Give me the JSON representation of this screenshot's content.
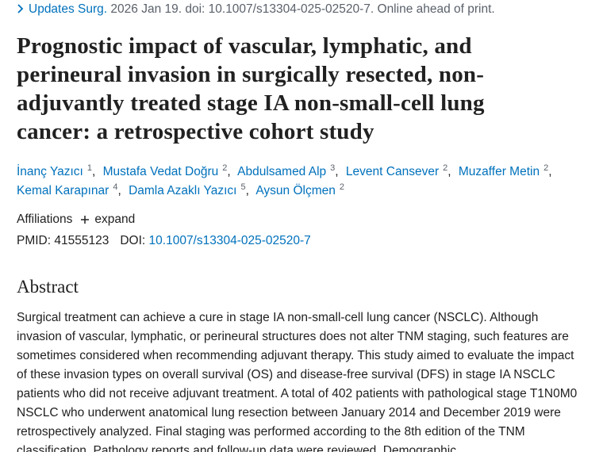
{
  "citation": {
    "journal": "Updates Surg.",
    "details": "2026 Jan 19. doi: 10.1007/s13304-025-02520-7. Online ahead of print."
  },
  "title": "Prognostic impact of vascular, lymphatic, and perineural invasion in surgically resected, non-adjuvantly treated stage IA non-small-cell lung cancer: a retrospective cohort study",
  "authors": [
    {
      "name": "İnanç Yazıcı",
      "aff": "1"
    },
    {
      "name": "Mustafa Vedat Doğru",
      "aff": "2"
    },
    {
      "name": "Abdulsamed Alp",
      "aff": "3"
    },
    {
      "name": "Levent Cansever",
      "aff": "2"
    },
    {
      "name": "Muzaffer Metin",
      "aff": "2"
    },
    {
      "name": "Kemal Karapınar",
      "aff": "4"
    },
    {
      "name": "Damla Azaklı Yazıcı",
      "aff": "5"
    },
    {
      "name": "Aysun Ölçmen",
      "aff": "2"
    }
  ],
  "affiliations": {
    "label": "Affiliations",
    "expand": "expand"
  },
  "identifiers": {
    "pmid_label": "PMID:",
    "pmid": "41555123",
    "doi_label": "DOI:",
    "doi": "10.1007/s13304-025-02520-7"
  },
  "abstract": {
    "heading": "Abstract",
    "text": "Surgical treatment can achieve a cure in stage IA non-small-cell lung cancer (NSCLC). Although invasion of vascular, lymphatic, or perineural structures does not alter TNM staging, such features are sometimes considered when recommending adjuvant therapy. This study aimed to evaluate the impact of these invasion types on overall survival (OS) and disease-free survival (DFS) in stage IA NSCLC patients who did not receive adjuvant treatment. A total of 402 patients with pathological stage T1N0M0 NSCLC who underwent anatomical lung resection between January 2014 and December 2019 were retrospectively analyzed. Final staging was performed according to the 8th edition of the TNM classification. Pathology reports and follow-up data were reviewed. Demographic"
  }
}
